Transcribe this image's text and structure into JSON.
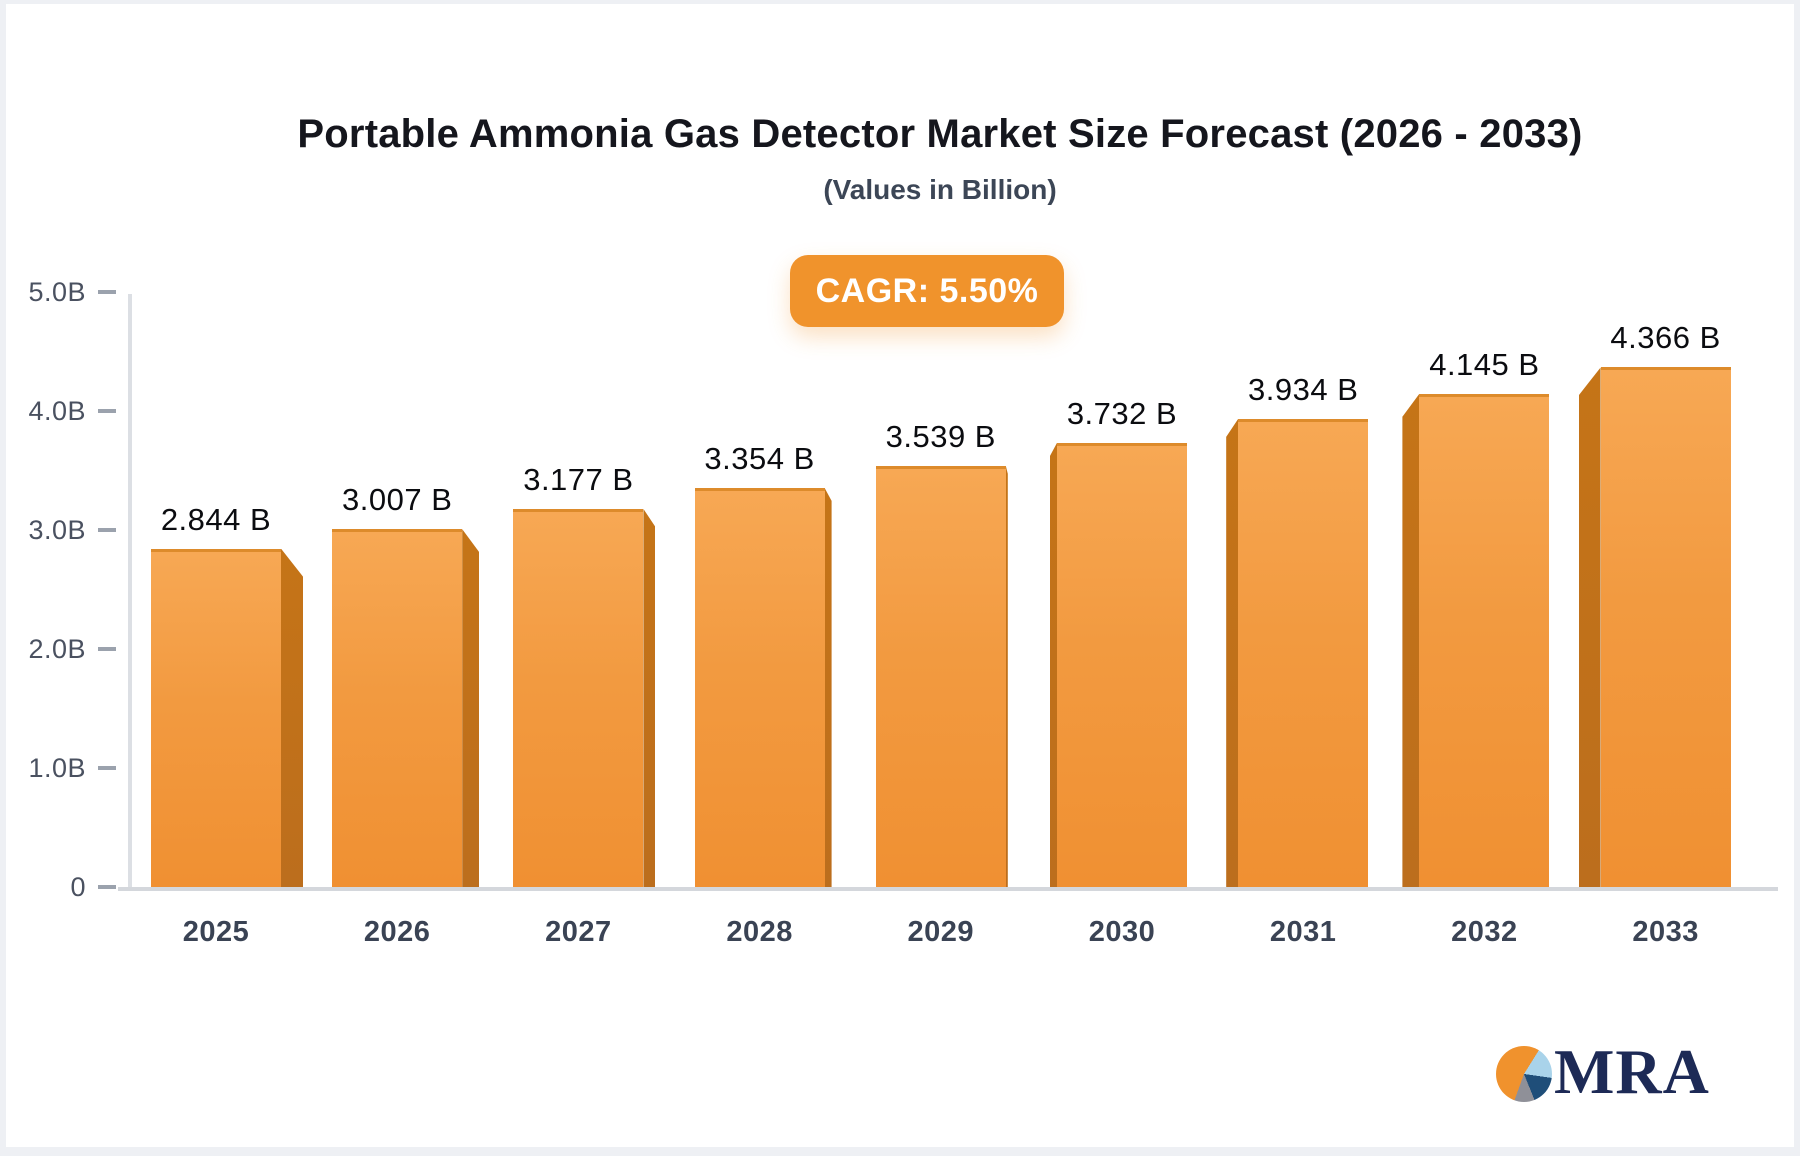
{
  "header": {
    "title": "Portable Ammonia Gas Detector Market Size Forecast (2026 - 2033)",
    "subtitle": "(Values in Billion)"
  },
  "badge": {
    "label": "CAGR: 5.50%"
  },
  "chart_data": {
    "type": "bar",
    "title": "Portable Ammonia Gas Detector Market Size Forecast (2026 - 2033)",
    "subtitle": "(Values in Billion)",
    "annotation": "CAGR: 5.50%",
    "categories": [
      "2025",
      "2026",
      "2027",
      "2028",
      "2029",
      "2030",
      "2031",
      "2032",
      "2033"
    ],
    "values": [
      2.844,
      3.007,
      3.177,
      3.354,
      3.539,
      3.732,
      3.934,
      4.145,
      4.366
    ],
    "value_labels": [
      "2.844 B",
      "3.007 B",
      "3.177 B",
      "3.354 B",
      "3.539 B",
      "3.732 B",
      "3.934 B",
      "4.145 B",
      "4.366 B"
    ],
    "unit": "Billion",
    "xlabel": "",
    "ylabel": "",
    "ylim": [
      0,
      5
    ],
    "yticks": {
      "values": [
        0,
        1,
        2,
        3,
        4,
        5
      ],
      "labels": [
        "0",
        "1.0B",
        "2.0B",
        "3.0B",
        "4.0B",
        "5.0B"
      ]
    },
    "grid": false,
    "legend_position": "none",
    "bar_style": "3d-perspective"
  },
  "colors": {
    "bar_face": "#f49a40",
    "bar_face_top": "#f7a854",
    "bar_face_bottom": "#f09032",
    "bar_side": "#bd6e1c",
    "badge_background": "#f0932c",
    "badge_text": "#ffffff",
    "title_text": "#15161d",
    "subtitle_text": "#3c4656",
    "axis_line": "#dcdfe4",
    "tick_text": "#4a5160",
    "category_text": "#3a4354",
    "logo_navy": "#1d2a56",
    "logo_pie_orange": "#f0922d",
    "logo_pie_lightblue": "#a9d3ea",
    "logo_pie_darkblue": "#1f4e79",
    "logo_pie_gray": "#8f9098"
  },
  "logo": {
    "text": "MRA"
  }
}
